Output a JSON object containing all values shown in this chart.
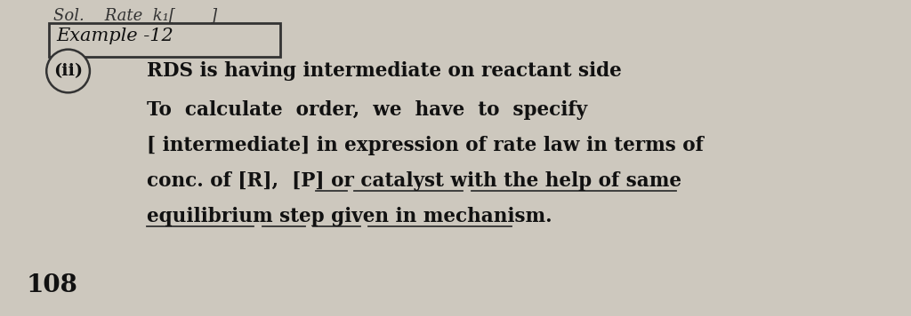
{
  "bg_color": "#cdc8be",
  "header_text": "Sol.    Rate  k₁[       ]",
  "example_box_text": "Example -12",
  "ii_label": "(ii)",
  "line1": "RDS is having intermediate on reactant side",
  "para_line1": "To  calculate  order,  we  have  to  specify",
  "para_line2": "[ intermediate] in expression of rate law in terms of",
  "para_line3": "conc. of [R],  [P] or catalyst with the help of same",
  "para_line4": "equilibrium step given in mechanism.",
  "page_number": "108",
  "text_color": "#111111",
  "box_edge_color": "#333333"
}
